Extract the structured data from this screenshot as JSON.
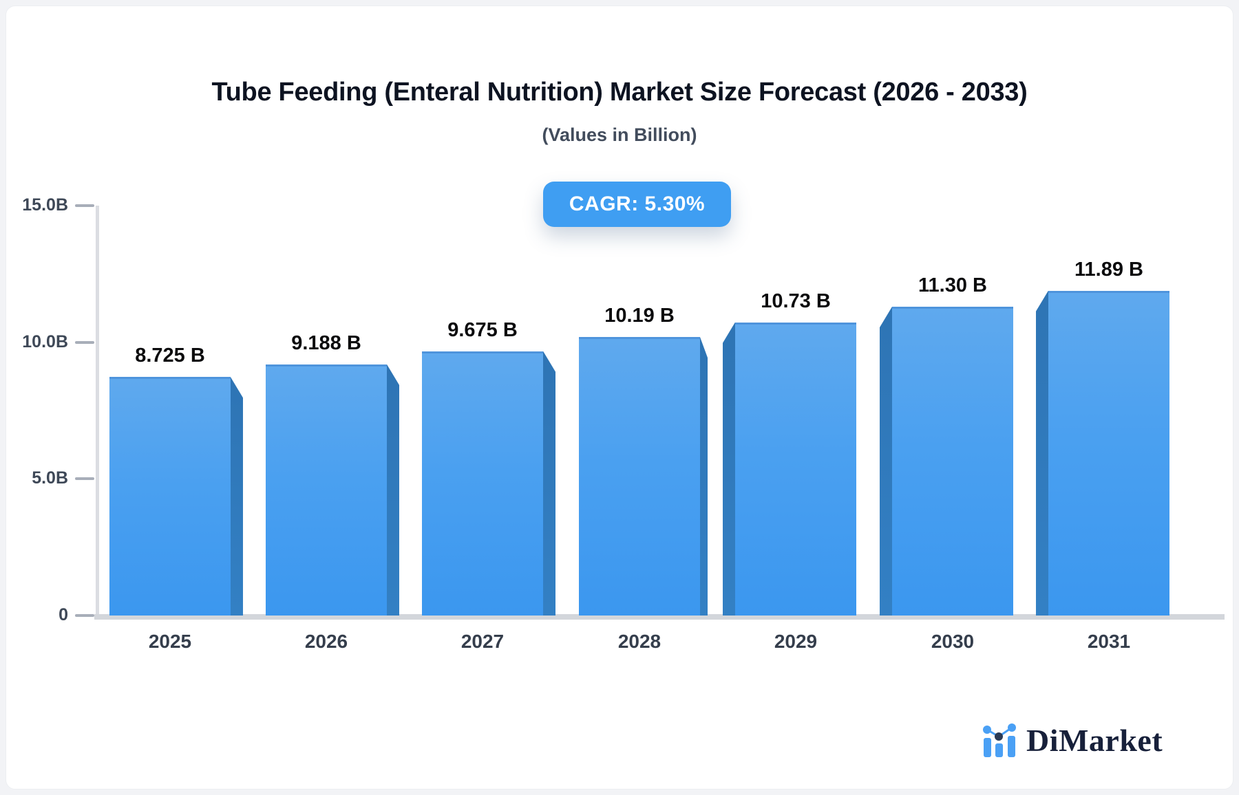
{
  "header": {
    "title": "Tube Feeding (Enteral Nutrition) Market Size Forecast (2026 - 2033)",
    "subtitle": "(Values in Billion)",
    "cagr_label": "CAGR: 5.30%"
  },
  "chart_data": {
    "type": "bar",
    "title": "Tube Feeding (Enteral Nutrition) Market Size Forecast (2026 - 2033)",
    "subtitle": "(Values in Billion)",
    "categories": [
      "2025",
      "2026",
      "2027",
      "2028",
      "2029",
      "2030",
      "2031"
    ],
    "values": [
      8.725,
      9.188,
      9.675,
      10.19,
      10.73,
      11.3,
      11.89
    ],
    "value_labels": [
      "8.725 B",
      "9.188 B",
      "9.675 B",
      "10.19 B",
      "10.73 B",
      "11.30 B",
      "11.89 B"
    ],
    "cagr_percent": 5.3,
    "y_ticks": [
      {
        "label": "15.0B",
        "value": 15
      },
      {
        "label": "10.0B",
        "value": 10
      },
      {
        "label": "5.0B",
        "value": 5
      },
      {
        "label": "0",
        "value": 0
      }
    ],
    "ylim": [
      0,
      15
    ],
    "xlabel": "",
    "ylabel": "",
    "grid": false,
    "legend": false,
    "bar_style": "3d-pseudo-perspective"
  },
  "branding": {
    "logo_text": "DiMarket",
    "logo_icon": "mini-bar-chart-icon"
  },
  "colors": {
    "accent": "#3f9ef2",
    "bar_face_top": "#5fa9ee",
    "bar_face_bottom": "#3b97ef",
    "bar_side": "#2e74b4",
    "axis_line": "#d3d6db",
    "tick_text": "#3e4857",
    "title_text": "#0d1321",
    "logo_navy": "#17203a"
  }
}
